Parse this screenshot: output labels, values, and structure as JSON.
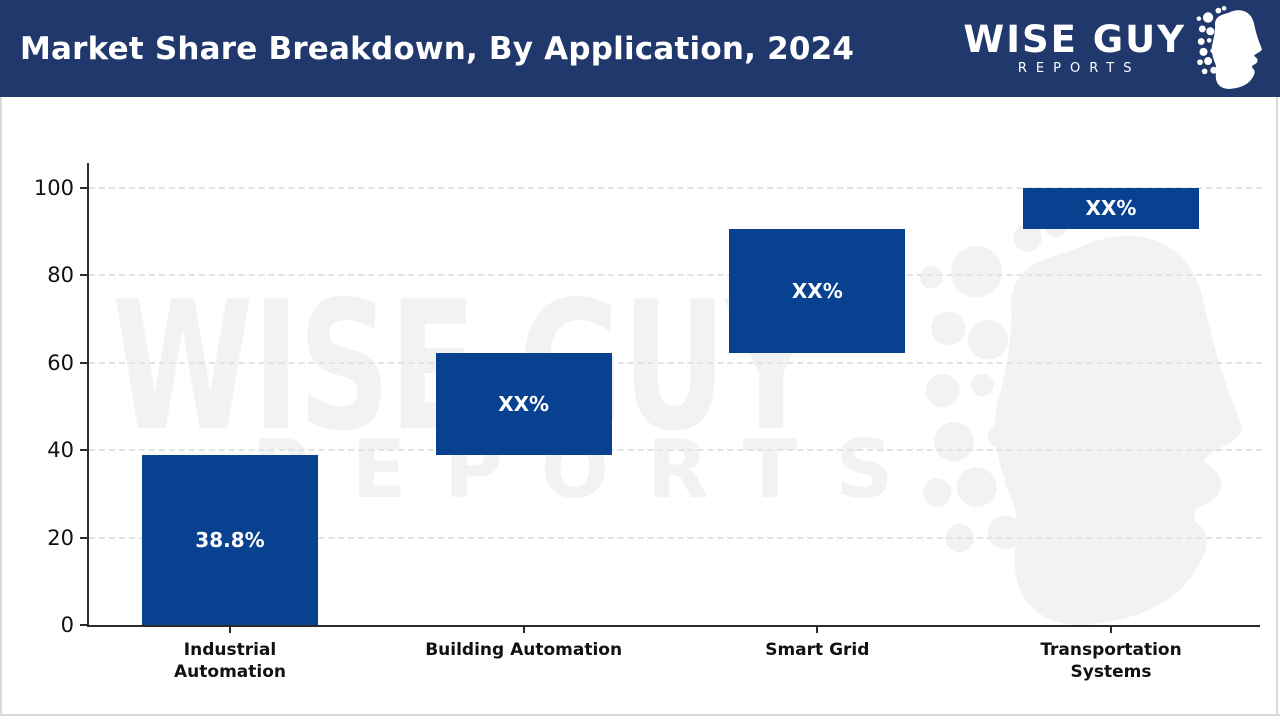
{
  "header": {
    "title": "Market Share Breakdown, By Application, 2024",
    "logo": {
      "line1": "WISE GUY",
      "line2": "REPORTS"
    }
  },
  "watermark": {
    "line1": "WISE GUY",
    "line2": "REPORTS"
  },
  "icons": {
    "logo_head": "dotted-head-profile-icon",
    "watermark_head": "dotted-head-profile-icon"
  },
  "colors": {
    "header_bg": "#20386b",
    "bar": "#07418f",
    "bar_label": "#ffffff",
    "axis": "#2b2b2b",
    "gridline": "#e3e3e3",
    "watermark": "#f1f2f4",
    "frame_border": "#d9d9d9",
    "tick_text": "#111111"
  },
  "chart_data": {
    "type": "bar",
    "subtype": "waterfall",
    "title": "Market Share Breakdown, By Application, 2024",
    "categories": [
      "Industrial Automation",
      "Building Automation",
      "Smart Grid",
      "Transportation Systems"
    ],
    "bars": [
      {
        "category": "Industrial Automation",
        "start": 0,
        "end": 38.8,
        "label": "38.8%"
      },
      {
        "category": "Building Automation",
        "start": 38.8,
        "end": 62.2,
        "label": "XX%"
      },
      {
        "category": "Smart Grid",
        "start": 62.2,
        "end": 90.6,
        "label": "XX%"
      },
      {
        "category": "Transportation Systems",
        "start": 90.6,
        "end": 100,
        "label": "XX%"
      }
    ],
    "xlabel": "",
    "ylabel": "",
    "yticks": [
      0,
      20,
      40,
      60,
      80,
      100
    ],
    "ylim": [
      0,
      105.5
    ],
    "grid": "horizontal-dashed",
    "legend": "none"
  }
}
